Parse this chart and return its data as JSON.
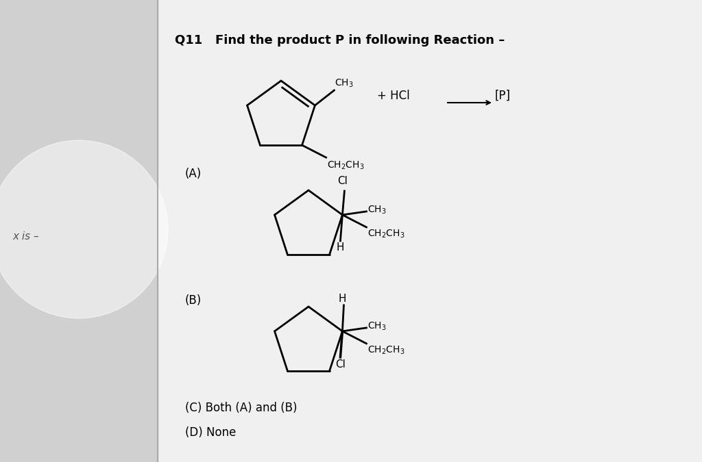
{
  "background_color": "#f0f0f0",
  "panel_bg": "#ffffff",
  "title_text": "Q11   Find the product P in following Reaction –",
  "reaction_text": "+ HCl —→[P]",
  "option_A_label": "(A)",
  "option_B_label": "(B)",
  "option_C_text": "(C) Both (A) and (B)",
  "option_D_text": "(D) None",
  "left_watermark": "x is –",
  "fig_width": 10.24,
  "fig_height": 6.75,
  "dpi": 100
}
